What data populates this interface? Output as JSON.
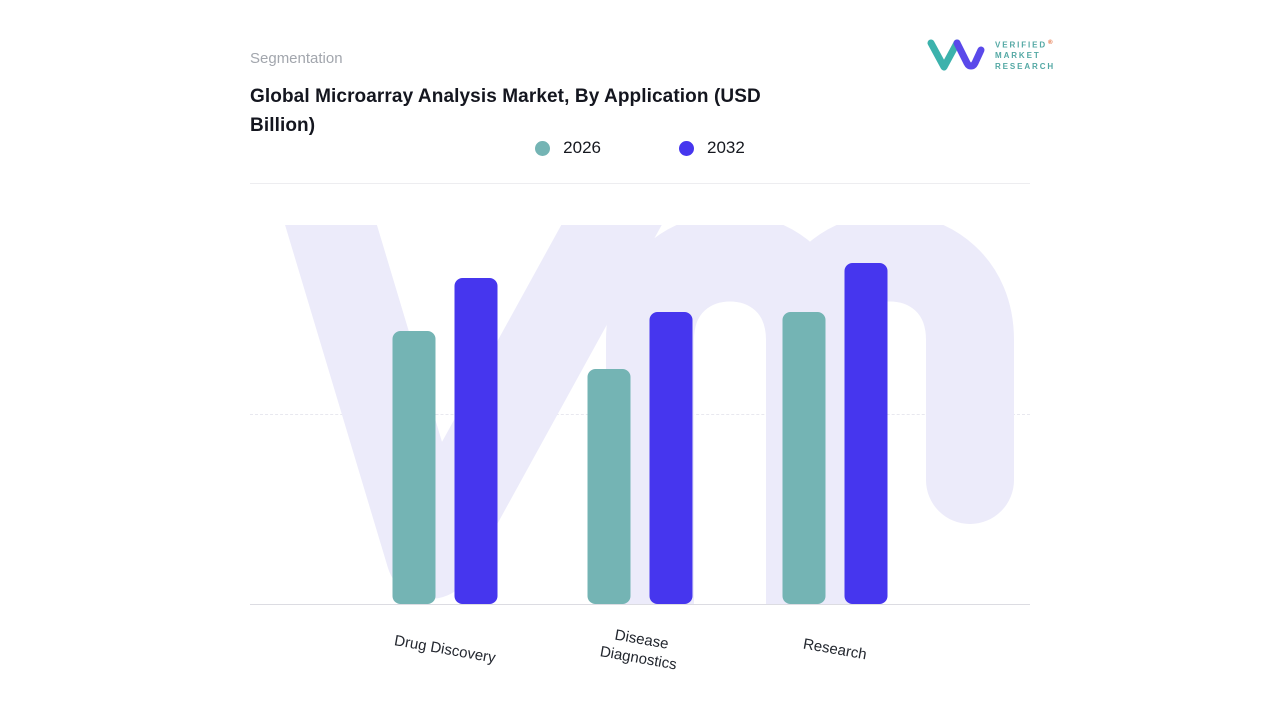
{
  "page": {
    "eyebrow": "Segmentation",
    "title_lines": [
      "Global Microarray Analysis Market, By Application (USD",
      "Billion)"
    ],
    "background": "#FFFFFF"
  },
  "brand": {
    "name_lines": [
      "VERIFIED",
      "MARKET",
      "RESEARCH"
    ],
    "registered_mark": "®",
    "colors": {
      "glyph_teal": "#3CB2AC",
      "glyph_indigo": "#5A49EA",
      "text_teal": "#53A8A4",
      "registered_orange": "#E0622F"
    }
  },
  "watermark": {
    "label": "vmr-watermark",
    "color": "#ECEBFA"
  },
  "chart_data": {
    "type": "bar",
    "title": "Global Microarray Analysis Market, By Application (USD Billion)",
    "units": "USD Billion",
    "categories": [
      "Drug Discovery",
      "Disease Diagnostics",
      "Research"
    ],
    "series": [
      {
        "name": "2026",
        "color": "#74B4B4",
        "values": [
          72,
          62,
          77
        ]
      },
      {
        "name": "2032",
        "color": "#4636EE",
        "values": [
          86,
          77,
          90
        ]
      }
    ],
    "value_note": "No y-axis tick labels are visible; values are relative bar heights on a 0-100 scale.",
    "xlabel": "",
    "ylabel": "",
    "ylim": [
      0,
      100
    ],
    "gridlines": [
      50,
      100
    ],
    "grid_style": "dashed",
    "legend_position": "top-center",
    "baseline_color": "#DCDCE2",
    "x_label_rotation_deg": 10
  }
}
